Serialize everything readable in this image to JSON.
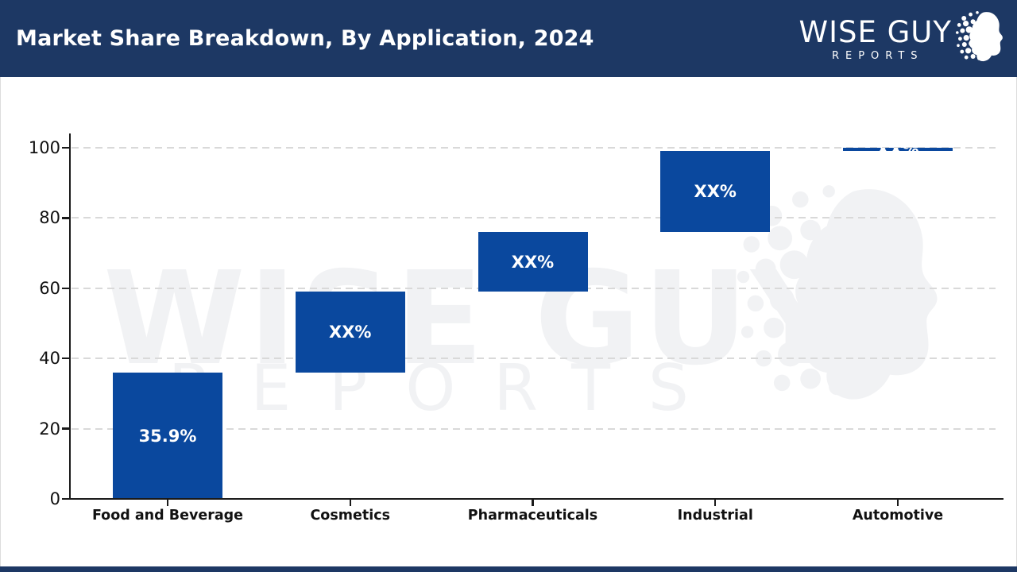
{
  "header": {
    "title": "Market Share Breakdown, By Application, 2024",
    "logo": {
      "line1": "WISE GUY",
      "line2": "REPORTS"
    }
  },
  "watermark": {
    "line1": "WISE GUY",
    "line2": "REPORTS"
  },
  "colors": {
    "header_bg": "#1d3864",
    "footer_bg": "#1d3864",
    "bar": "#0a489e",
    "bar_label": "#ffffff",
    "grid": "#d9d9d9",
    "axis": "#1a1a1a",
    "tick_label": "#111111",
    "watermark": "#f1f2f4"
  },
  "chart_data": {
    "type": "bar",
    "subtype": "waterfall",
    "title": "Market Share Breakdown, By Application, 2024",
    "categories": [
      "Food and Beverage",
      "Cosmetics",
      "Pharmaceuticals",
      "Industrial",
      "Automotive"
    ],
    "segments": [
      {
        "category": "Food and Beverage",
        "start": 0,
        "end": 35.9,
        "label": "35.9%"
      },
      {
        "category": "Cosmetics",
        "start": 35.9,
        "end": 59,
        "label": "XX%"
      },
      {
        "category": "Pharmaceuticals",
        "start": 59,
        "end": 76,
        "label": "XX%"
      },
      {
        "category": "Industrial",
        "start": 76,
        "end": 99,
        "label": "XX%"
      },
      {
        "category": "Automotive",
        "start": 99,
        "end": 100,
        "label": "XX%"
      }
    ],
    "xlabel": "",
    "ylabel": "",
    "ylim": [
      0,
      100
    ],
    "yticks": [
      0,
      20,
      40,
      60,
      80,
      100
    ],
    "grid": "horizontal-dashed",
    "legend": "none"
  }
}
